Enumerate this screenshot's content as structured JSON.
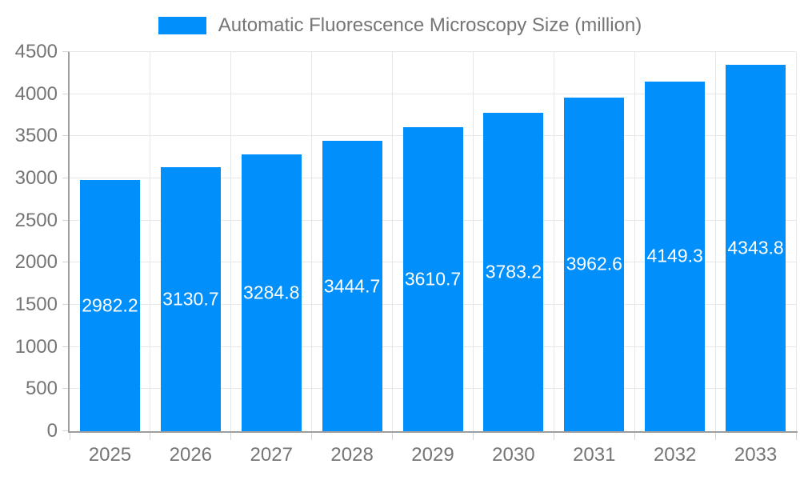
{
  "legend": {
    "label": "Automatic Fluorescence Microscopy Size (million)"
  },
  "chart_data": {
    "type": "bar",
    "title": "Automatic Fluorescence Microscopy Size (million)",
    "categories": [
      "2025",
      "2026",
      "2027",
      "2028",
      "2029",
      "2030",
      "2031",
      "2032",
      "2033"
    ],
    "series": [
      {
        "name": "Automatic Fluorescence Microscopy Size (million)",
        "values": [
          2982.2,
          3130.7,
          3284.8,
          3444.7,
          3610.7,
          3783.2,
          3962.6,
          4149.3,
          4343.8
        ]
      }
    ],
    "value_labels": [
      "2982.2",
      "3130.7",
      "3284.8",
      "3444.7",
      "3610.7",
      "3783.2",
      "3962.6",
      "4149.3",
      "4343.8"
    ],
    "xlabel": "",
    "ylabel": "",
    "ylim": [
      0,
      4500
    ],
    "ytick_step": 500,
    "ytick_labels": [
      "0",
      "500",
      "1000",
      "1500",
      "2000",
      "2500",
      "3000",
      "3500",
      "4000",
      "4500"
    ],
    "grid": true,
    "legend_position": "top",
    "colors": {
      "bar": "#008FFB",
      "value_label": "#ffffff",
      "axis_text": "#757575",
      "grid_line": "#e7e7e7",
      "axis_line": "#9e9e9e",
      "tick": "#d4d4d4"
    }
  }
}
